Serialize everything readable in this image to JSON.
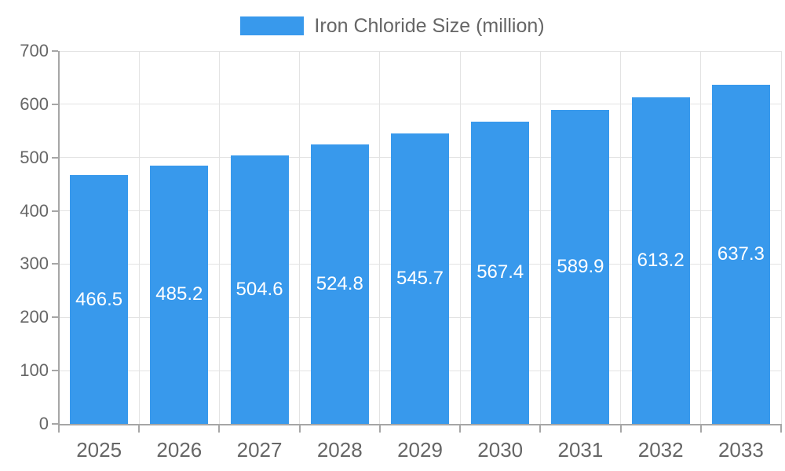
{
  "chart_data": {
    "type": "bar",
    "title": "",
    "series_label": "Iron Chloride Size (million)",
    "categories": [
      "2025",
      "2026",
      "2027",
      "2028",
      "2029",
      "2030",
      "2031",
      "2032",
      "2033"
    ],
    "values": [
      466.5,
      485.2,
      504.6,
      524.8,
      545.7,
      567.4,
      589.9,
      613.2,
      637.3
    ],
    "value_labels": [
      "466.5",
      "485.2",
      "504.6",
      "524.8",
      "545.7",
      "567.4",
      "589.9",
      "613.2",
      "637.3"
    ],
    "ylim": [
      0,
      700
    ],
    "ytick_step": 100,
    "y_tick_labels": [
      "0",
      "100",
      "200",
      "300",
      "400",
      "500",
      "600",
      "700"
    ],
    "grid": true,
    "legend_position": "top",
    "colors": {
      "bar": "#3899EC",
      "bar_value_text": "#ffffff",
      "axis_text": "#666666",
      "legend_text": "#666666",
      "gridline": "#e3e3e3",
      "axis_line": "#a6a6a6",
      "background": "#ffffff"
    }
  }
}
